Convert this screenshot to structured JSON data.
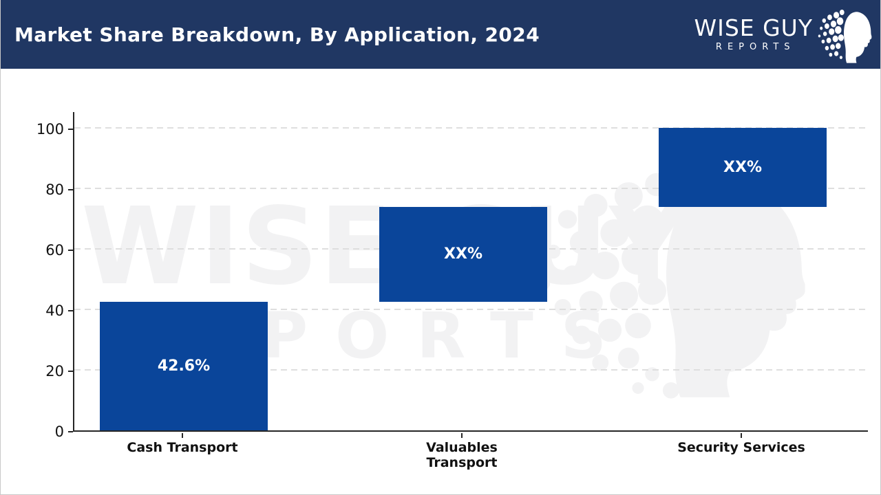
{
  "header": {
    "title": "Market Share Breakdown, By Application, 2024",
    "logo": {
      "line1": "WISE GUY",
      "line2": "REPORTS"
    }
  },
  "watermark": {
    "line1": "WISE GUY",
    "line2": "REPORTS"
  },
  "chart_data": {
    "type": "bar",
    "variant": "waterfall",
    "title": "Market Share Breakdown, By Application, 2024",
    "categories": [
      "Cash Transport",
      "Valuables\nTransport",
      "Security Services"
    ],
    "bars": [
      {
        "label": "42.6%",
        "value": 42.6,
        "start": 0,
        "end": 42.6
      },
      {
        "label": "XX%",
        "value": null,
        "start": 42.6,
        "end": 73.8
      },
      {
        "label": "XX%",
        "value": null,
        "start": 73.8,
        "end": 100
      }
    ],
    "ylim": [
      0,
      100
    ],
    "yticks": [
      0,
      20,
      40,
      60,
      80,
      100
    ],
    "xlabel": "",
    "ylabel": "",
    "grid": {
      "horizontal": true,
      "style": "dashed"
    },
    "legend": "none",
    "bar_color": "#0a459a",
    "bar_label_color": "#ffffff"
  },
  "colors": {
    "header_bg": "#203763",
    "header_text": "#ffffff",
    "axis": "#262626",
    "gridline": "#dedede",
    "tick_label": "#111111",
    "watermark": "#f2f2f3",
    "page_border": "#c9c9c9"
  }
}
